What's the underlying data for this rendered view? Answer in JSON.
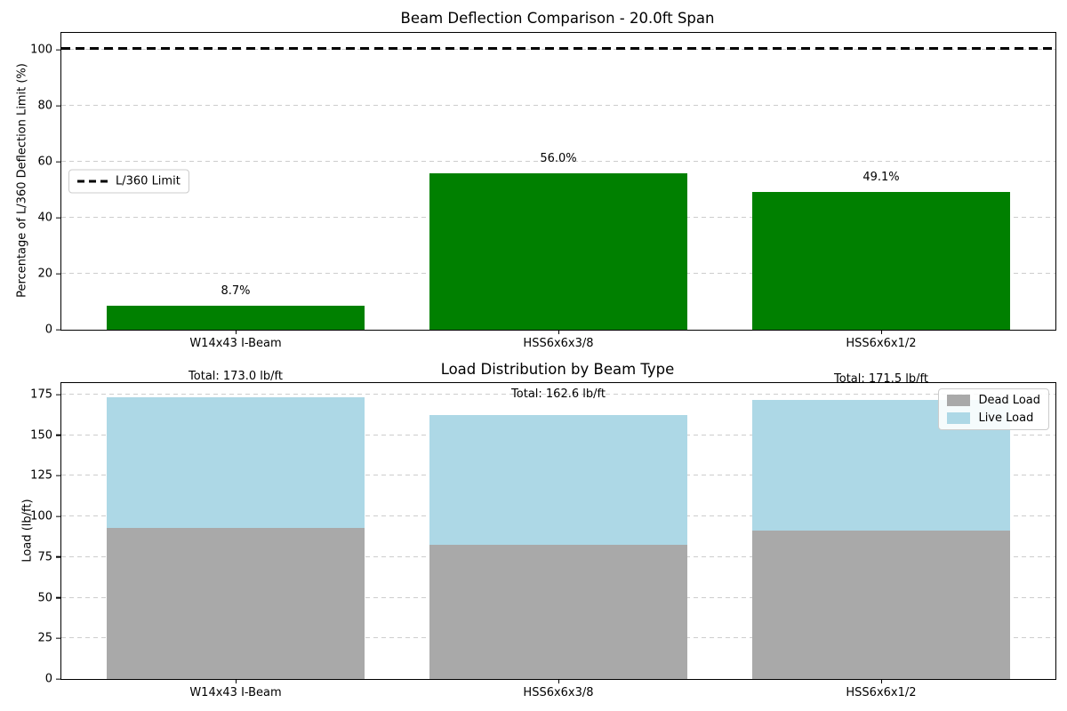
{
  "figure": {
    "background": "#ffffff"
  },
  "chart_data": [
    {
      "type": "bar",
      "title": "Beam Deflection Comparison - 20.0ft Span",
      "ylabel": "Percentage of L/360 Deflection Limit (%)",
      "categories": [
        "W14x43 I-Beam",
        "HSS6x6x3/8",
        "HSS6x6x1/2"
      ],
      "values": [
        8.7,
        56.0,
        49.1
      ],
      "bar_labels": [
        "8.7%",
        "56.0%",
        "49.1%"
      ],
      "bar_color": "#008000",
      "yticks": [
        0,
        20,
        40,
        60,
        80,
        100
      ],
      "ylim": [
        0,
        106
      ],
      "grid": true,
      "reference_line": {
        "value": 100,
        "label": "L/360 Limit",
        "color": "#000000",
        "style": "dashed"
      },
      "legend": {
        "position": "center-left",
        "entries": [
          {
            "label": "L/360 Limit",
            "marker": "dashed-line",
            "color": "#000000"
          }
        ]
      }
    },
    {
      "type": "stacked-bar",
      "title": "Load Distribution by Beam Type",
      "ylabel": "Load (lb/ft)",
      "categories": [
        "W14x43 I-Beam",
        "HSS6x6x3/8",
        "HSS6x6x1/2"
      ],
      "series": [
        {
          "name": "Dead Load",
          "color": "#a9a9a9",
          "values": [
            93.0,
            82.6,
            91.5
          ]
        },
        {
          "name": "Live Load",
          "color": "#add8e6",
          "values": [
            80.0,
            80.0,
            80.0
          ]
        }
      ],
      "totals": [
        173.0,
        162.6,
        171.5
      ],
      "total_labels": [
        "Total: 173.0 lb/ft",
        "Total: 162.6 lb/ft",
        "Total: 171.5 lb/ft"
      ],
      "yticks": [
        0,
        25,
        50,
        75,
        100,
        125,
        150,
        175
      ],
      "ylim": [
        0,
        182
      ],
      "grid": true,
      "legend": {
        "position": "top-right",
        "entries": [
          {
            "label": "Dead Load",
            "marker": "patch",
            "color": "#a9a9a9"
          },
          {
            "label": "Live Load",
            "marker": "patch",
            "color": "#add8e6"
          }
        ]
      }
    }
  ]
}
